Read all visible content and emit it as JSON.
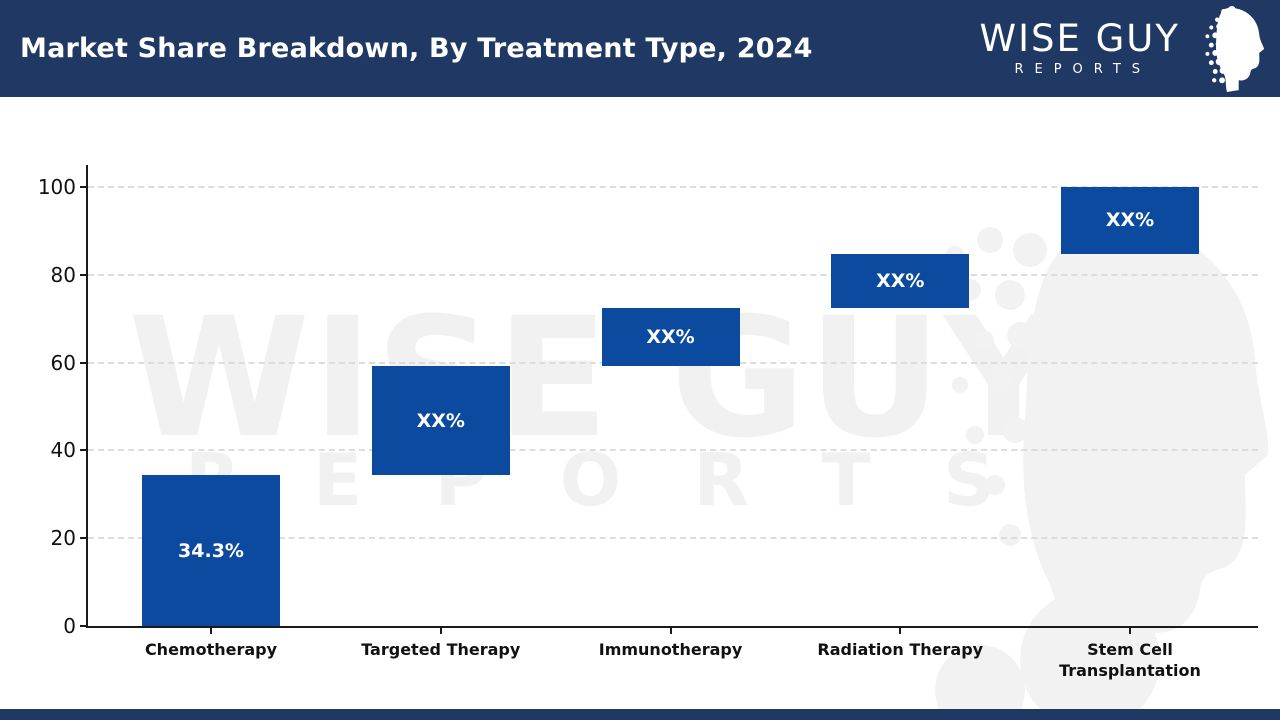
{
  "header": {
    "title": "Market Share Breakdown, By Treatment Type, 2024",
    "bg_color": "#1f3864",
    "logo": {
      "line1": "WISE GUY",
      "line2": "REPORTS",
      "head_icon": "dotted-head-profile-icon"
    }
  },
  "watermark": {
    "line1": "WISE GUY",
    "line2": "R E P O R T S"
  },
  "chart_data": {
    "type": "bar",
    "subtype": "waterfall",
    "title": "Market Share Breakdown, By Treatment Type, 2024",
    "categories": [
      "Chemotherapy",
      "Targeted Therapy",
      "Immunotherapy",
      "Radiation Therapy",
      "Stem Cell\nTransplantation"
    ],
    "segments": [
      {
        "category": "Chemotherapy",
        "label": "34.3%",
        "start": 0,
        "end": 34.3
      },
      {
        "category": "Targeted Therapy",
        "label": "XX%",
        "start": 34.3,
        "end": 59.3
      },
      {
        "category": "Immunotherapy",
        "label": "XX%",
        "start": 59.3,
        "end": 72.5
      },
      {
        "category": "Radiation Therapy",
        "label": "XX%",
        "start": 72.5,
        "end": 84.8
      },
      {
        "category": "Stem Cell Transplantation",
        "label": "XX%",
        "start": 84.8,
        "end": 100
      }
    ],
    "yticks": [
      0,
      20,
      40,
      60,
      80,
      100
    ],
    "ylim": [
      0,
      100
    ],
    "xlabel": "",
    "ylabel": "",
    "grid": true,
    "legend": "none",
    "bar_color": "#0b4a9f",
    "value_label_color": "#ffffff"
  },
  "footer": {
    "bg_color": "#1f3864"
  }
}
